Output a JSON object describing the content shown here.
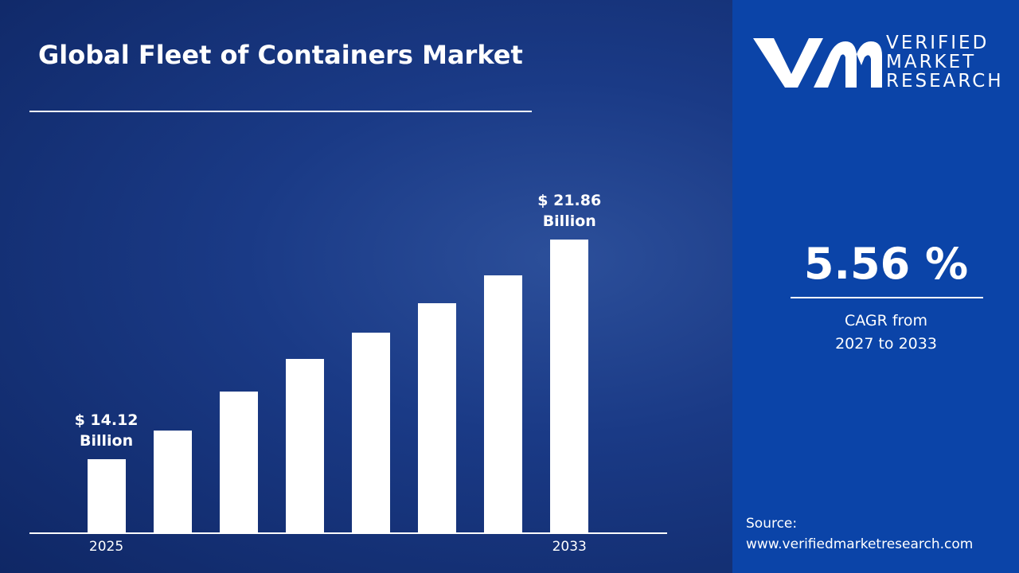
{
  "chart_data": {
    "type": "bar",
    "title": "Global Fleet of Containers Market",
    "categories": [
      "2025",
      null,
      null,
      null,
      null,
      null,
      null,
      "2033"
    ],
    "values": [
      14.12,
      15.13,
      16.5,
      17.65,
      18.58,
      19.62,
      20.6,
      21.86
    ],
    "value_labels": [
      "$ 14.12 Billion",
      null,
      null,
      null,
      null,
      null,
      null,
      "$ 21.86 Billion"
    ],
    "color": "#ffffff",
    "ylim": [
      11.5,
      22.9
    ]
  },
  "cagr": {
    "value": "5.56 %",
    "line1": "CAGR from",
    "line2": "2027 to 2033"
  },
  "logo": {
    "line1": "VERIFIED",
    "line2": "MARKET",
    "line3": "RESEARCH"
  },
  "source": {
    "label": "Source:",
    "url": "www.verifiedmarketresearch.com"
  }
}
